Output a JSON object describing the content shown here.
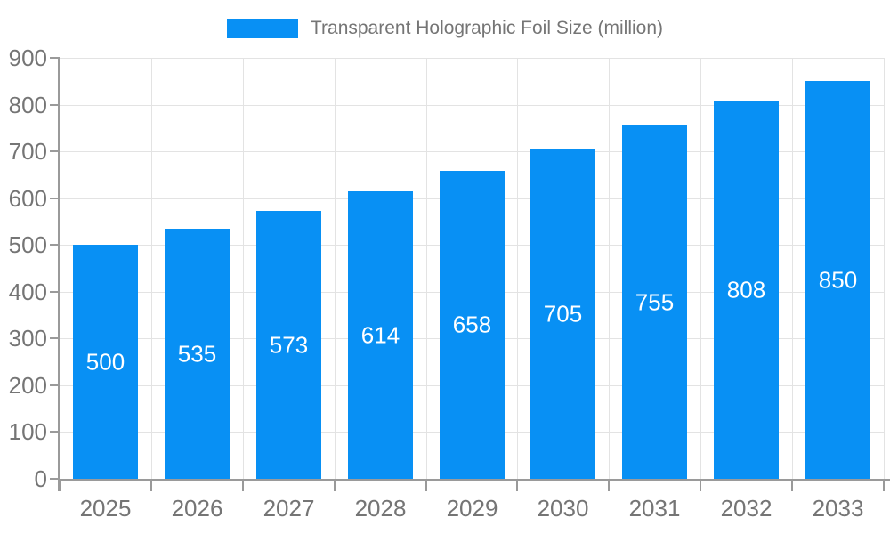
{
  "legend": {
    "label": "Transparent Holographic Foil Size (million)"
  },
  "colors": {
    "bar": "#0890f4",
    "bar_value_text": "#ffffff",
    "axis_line": "#9a9a9a",
    "tick_mark": "#9a9a9a",
    "tick_label_text": "#757575",
    "gridline": "#e3e3e3",
    "background": "#ffffff"
  },
  "chart_data": {
    "type": "bar",
    "title": "",
    "legend": [
      "Transparent Holographic Foil Size (million)"
    ],
    "legend_position": "top",
    "categories": [
      "2025",
      "2026",
      "2027",
      "2028",
      "2029",
      "2030",
      "2031",
      "2032",
      "2033"
    ],
    "series": [
      {
        "name": "Transparent Holographic Foil Size (million)",
        "values": [
          500,
          535,
          573,
          614,
          658,
          705,
          755,
          808,
          850
        ]
      }
    ],
    "xlabel": "",
    "ylabel": "",
    "ylim": [
      0,
      900
    ],
    "ytick_step": 100,
    "yticks": [
      0,
      100,
      200,
      300,
      400,
      500,
      600,
      700,
      800,
      900
    ],
    "grid": true,
    "grid_horizontal": true,
    "grid_vertical": true,
    "value_labels": "inside-center"
  }
}
